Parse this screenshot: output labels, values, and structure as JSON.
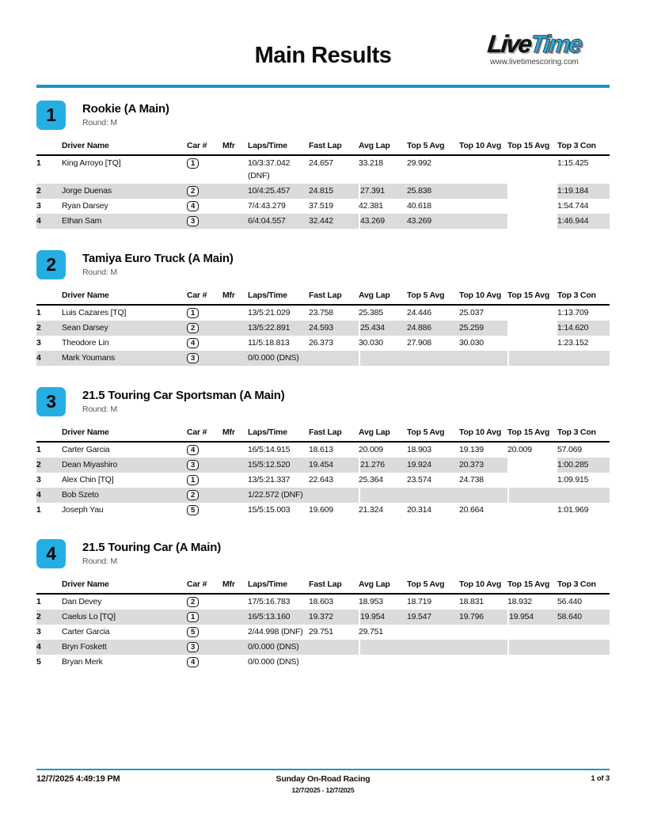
{
  "page": {
    "title": "Main Results",
    "logo": {
      "part1": "Live",
      "part2": "Time",
      "website": "www.livetimescoring.com"
    },
    "footer": {
      "timestamp": "12/7/2025 4:49:19 PM",
      "event": "Sunday On-Road Racing",
      "date_range": "12/7/2025 - 12/7/2025",
      "page_indicator": "1 of 3"
    }
  },
  "colors": {
    "accent_badge": "#25AEE2",
    "header_rule": "#1B95C8",
    "footer_rule": "#1E95C6",
    "row_shade": "#DBDBDB"
  },
  "columns": [
    "Driver Name",
    "Car #",
    "Mfr",
    "Laps/Time",
    "Fast Lap",
    "Avg Lap",
    "Top 5 Avg",
    "Top 10 Avg",
    "Top 15 Avg",
    "Top 3 Con"
  ],
  "sections": [
    {
      "badge": "1",
      "title": "Rookie (A Main)",
      "round": "Round: M",
      "rows": [
        {
          "pos": "1",
          "driver": "King Arroyo [TQ]",
          "car": "1",
          "mfr": "",
          "laps": "10/3:37.042",
          "laps2": "(DNF)",
          "fast": "24.657",
          "avg": "33.218",
          "top5": "29.992",
          "top10": "",
          "top15": "",
          "top3": "1:15.425"
        },
        {
          "pos": "2",
          "driver": "Jorge Duenas",
          "car": "2",
          "mfr": "",
          "laps": "10/4:25.457",
          "fast": "24.815",
          "avg": "27.391",
          "top5": "25.838",
          "top10": "",
          "top15": "",
          "top3": "1:19.184"
        },
        {
          "pos": "3",
          "driver": "Ryan Darsey",
          "car": "4",
          "mfr": "",
          "laps": "7/4:43.279",
          "fast": "37.519",
          "avg": "42.381",
          "top5": "40.618",
          "top10": "",
          "top15": "",
          "top3": "1:54.744"
        },
        {
          "pos": "4",
          "driver": "Ethan Sam",
          "car": "3",
          "mfr": "",
          "laps": "6/4:04.557",
          "fast": "32.442",
          "avg": "43.269",
          "top5": "43.269",
          "top10": "",
          "top15": "",
          "top3": "1:46.944"
        }
      ]
    },
    {
      "badge": "2",
      "title": "Tamiya Euro Truck (A Main)",
      "round": "Round: M",
      "rows": [
        {
          "pos": "1",
          "driver": "Luis Cazares [TQ]",
          "car": "1",
          "mfr": "",
          "laps": "13/5:21.029",
          "fast": "23.758",
          "avg": "25.385",
          "top5": "24.446",
          "top10": "25.037",
          "top15": "",
          "top3": "1:13.709"
        },
        {
          "pos": "2",
          "driver": "Sean Darsey",
          "car": "2",
          "mfr": "",
          "laps": "13/5:22.891",
          "fast": "24.593",
          "avg": "25.434",
          "top5": "24.886",
          "top10": "25.259",
          "top15": "",
          "top3": "1:14.620"
        },
        {
          "pos": "3",
          "driver": "Theodore Lin",
          "car": "4",
          "mfr": "",
          "laps": "11/5:18.813",
          "fast": "26.373",
          "avg": "30.030",
          "top5": "27.908",
          "top10": "30.030",
          "top15": "",
          "top3": "1:23.152"
        },
        {
          "pos": "4",
          "driver": "Mark Youmans",
          "car": "3",
          "mfr": "",
          "laps": "0/0.000 (DNS)",
          "fast": "",
          "avg": "",
          "top5": "",
          "top10": "",
          "top15": "",
          "top3": ""
        }
      ]
    },
    {
      "badge": "3",
      "title": "21.5 Touring Car Sportsman (A Main)",
      "round": "Round: M",
      "rows": [
        {
          "pos": "1",
          "driver": "Carter Garcia",
          "car": "4",
          "mfr": "",
          "laps": "16/5:14.915",
          "fast": "18.613",
          "avg": "20.009",
          "top5": "18.903",
          "top10": "19.139",
          "top15": "20.009",
          "top3": "57.069"
        },
        {
          "pos": "2",
          "driver": "Dean Miyashiro",
          "car": "3",
          "mfr": "",
          "laps": "15/5:12.520",
          "fast": "19.454",
          "avg": "21.276",
          "top5": "19.924",
          "top10": "20.373",
          "top15": "",
          "top3": "1:00.285"
        },
        {
          "pos": "3",
          "driver": "Alex Chin [TQ]",
          "car": "1",
          "mfr": "",
          "laps": "13/5:21.337",
          "fast": "22.643",
          "avg": "25.364",
          "top5": "23.574",
          "top10": "24.738",
          "top15": "",
          "top3": "1:09.915"
        },
        {
          "pos": "4",
          "driver": "Bob Szeto",
          "car": "2",
          "mfr": "",
          "laps": "1/22.572 (DNF)",
          "fast": "",
          "avg": "",
          "top5": "",
          "top10": "",
          "top15": "",
          "top3": ""
        },
        {
          "pos": "1",
          "driver": "Joseph Yau",
          "car": "5",
          "mfr": "",
          "laps": "15/5:15.003",
          "fast": "19.609",
          "avg": "21.324",
          "top5": "20.314",
          "top10": "20.664",
          "top15": "",
          "top3": "1:01.969"
        }
      ]
    },
    {
      "badge": "4",
      "title": "21.5 Touring Car  (A Main)",
      "round": "Round: M",
      "rows": [
        {
          "pos": "1",
          "driver": "Dan Devey",
          "car": "2",
          "mfr": "",
          "laps": "17/5:16.783",
          "fast": "18.603",
          "avg": "18.953",
          "top5": "18.719",
          "top10": "18.831",
          "top15": "18.932",
          "top3": "56.440"
        },
        {
          "pos": "2",
          "driver": "Caelus Lo [TQ]",
          "car": "1",
          "mfr": "",
          "laps": "16/5:13.160",
          "fast": "19.372",
          "avg": "19.954",
          "top5": "19.547",
          "top10": "19.796",
          "top15": "19.954",
          "top3": "58.640"
        },
        {
          "pos": "3",
          "driver": "Carter Garcia",
          "car": "5",
          "mfr": "",
          "laps": "2/44.998 (DNF)",
          "fast": "29.751",
          "avg": "29.751",
          "top5": "",
          "top10": "",
          "top15": "",
          "top3": ""
        },
        {
          "pos": "4",
          "driver": "Bryn Foskett",
          "car": "3",
          "mfr": "",
          "laps": "0/0.000 (DNS)",
          "fast": "",
          "avg": "",
          "top5": "",
          "top10": "",
          "top15": "",
          "top3": ""
        },
        {
          "pos": "5",
          "driver": "Bryan Merk",
          "car": "4",
          "mfr": "",
          "laps": "0/0.000 (DNS)",
          "fast": "",
          "avg": "",
          "top5": "",
          "top10": "",
          "top15": "",
          "top3": ""
        }
      ]
    }
  ]
}
